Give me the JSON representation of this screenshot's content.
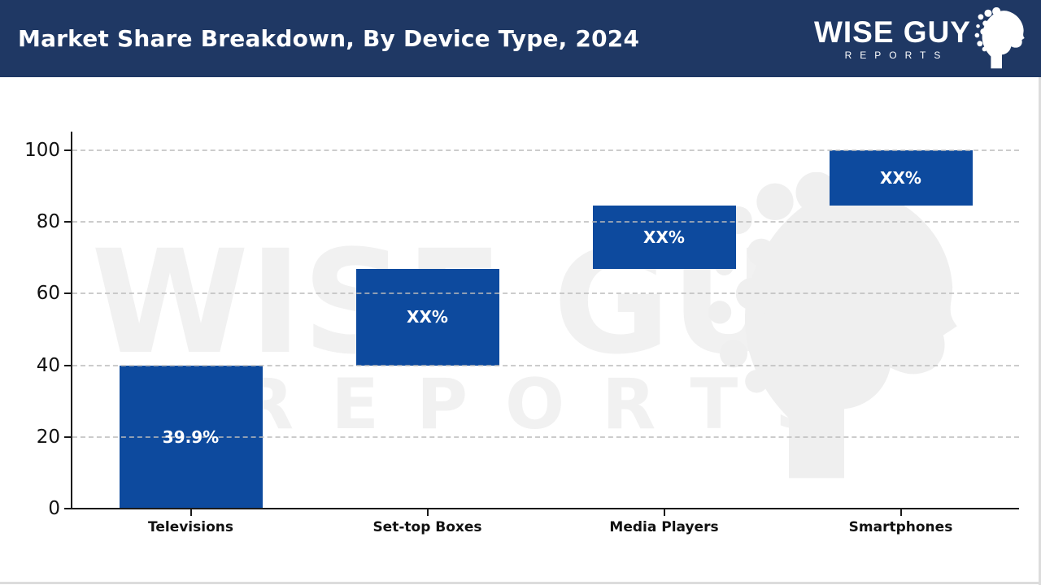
{
  "header": {
    "title": "Market Share Breakdown, By Device Type, 2024",
    "logo": {
      "brand_line1": "WISE GUY",
      "brand_line2": "REPORTS"
    }
  },
  "watermark": {
    "line1": "WISE GUY",
    "line2": "REPORTS"
  },
  "chart_data": {
    "type": "bar",
    "variant": "waterfall",
    "title": "Market Share Breakdown, By Device Type, 2024",
    "categories": [
      "Televisions",
      "Set-top Boxes",
      "Media Players",
      "Smartphones"
    ],
    "segments": [
      {
        "category": "Televisions",
        "start": 0,
        "end": 39.9,
        "label": "39.9%"
      },
      {
        "category": "Set-top Boxes",
        "start": 39.9,
        "end": 67,
        "label": "XX%"
      },
      {
        "category": "Media Players",
        "start": 67,
        "end": 84.5,
        "label": "XX%"
      },
      {
        "category": "Smartphones",
        "start": 84.5,
        "end": 100,
        "label": "XX%"
      }
    ],
    "xlabel": "",
    "ylabel": "",
    "y_ticks": [
      0,
      20,
      40,
      60,
      80,
      100
    ],
    "ylim": [
      0,
      105
    ],
    "grid": {
      "horizontal": true,
      "style": "dashed",
      "drawn_above_bars": true
    },
    "legend": "none"
  },
  "colors": {
    "header_bg": "#1f3864",
    "bar_fill": "#0d4a9e",
    "bar_label_text": "#ffffff",
    "axis": "#1a1a1a",
    "gridline": "#bbbbbb",
    "watermark": "#f1f1f1",
    "page_bg": "#ffffff"
  }
}
